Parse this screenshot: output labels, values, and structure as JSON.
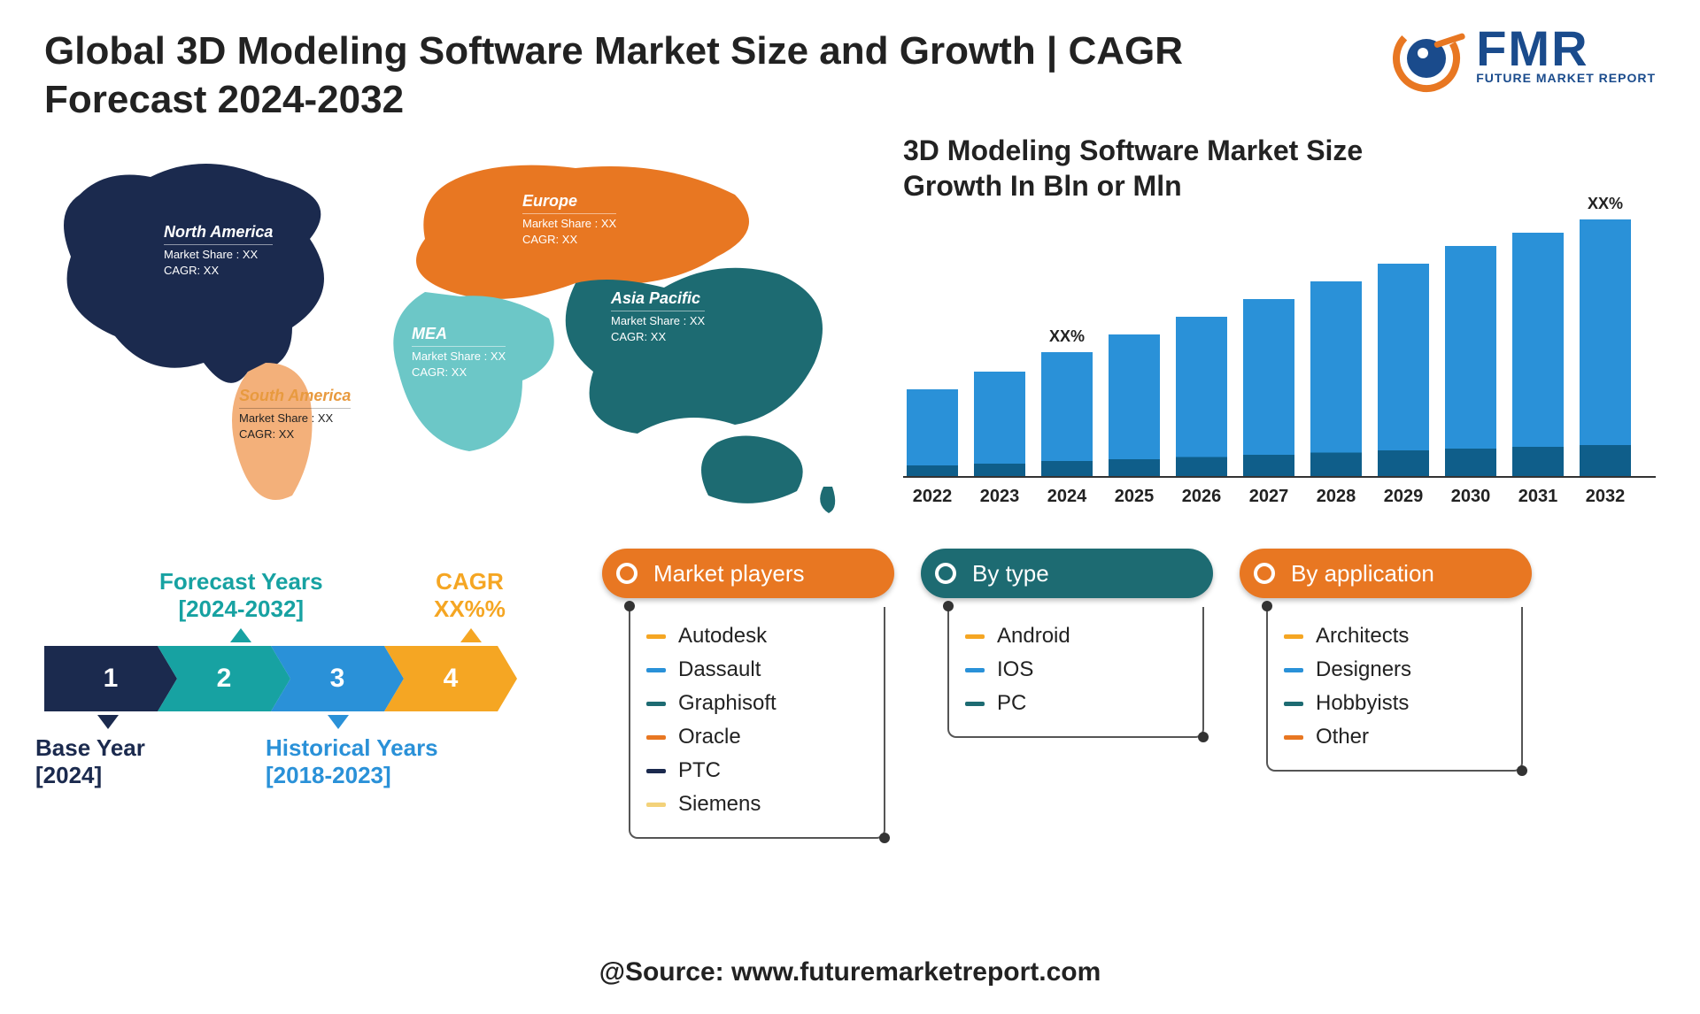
{
  "title": "Global 3D Modeling Software  Market Size and Growth | CAGR Forecast 2024-2032",
  "logo": {
    "fmr": "FMR",
    "sub": "FUTURE MARKET REPORT"
  },
  "colors": {
    "navy": "#1b2a4e",
    "teal": "#17a2a2",
    "blue": "#2a91d8",
    "orange": "#e87722",
    "yellow": "#f5a623",
    "lightTeal": "#6cc7c7",
    "peach": "#f3b07a",
    "deepTeal": "#1d6b72",
    "barBlue": "#2a91d8",
    "barDark": "#0f5e8a"
  },
  "map": {
    "regions": {
      "north_america": {
        "name": "North America",
        "share": "Market Share : XX",
        "cagr": "CAGR: XX",
        "color": "#1b2a4e"
      },
      "south_america": {
        "name": "South America",
        "share": "Market Share : XX",
        "cagr": "CAGR: XX",
        "color": "#f3b07a"
      },
      "europe": {
        "name": "Europe",
        "share": "Market Share : XX",
        "cagr": "CAGR: XX",
        "color": "#e87722"
      },
      "mea": {
        "name": "MEA",
        "share": "Market Share : XX",
        "cagr": "CAGR: XX",
        "color": "#6cc7c7"
      },
      "asia_pacific": {
        "name": "Asia Pacific",
        "share": "Market Share : XX",
        "cagr": "CAGR: XX",
        "color": "#1d6b72"
      }
    }
  },
  "chart": {
    "title": "3D Modeling Software Market Size Growth In Bln or Mln",
    "type": "bar",
    "years": [
      "2022",
      "2023",
      "2024",
      "2025",
      "2026",
      "2027",
      "2028",
      "2029",
      "2030",
      "2031",
      "2032"
    ],
    "values": [
      98,
      118,
      140,
      160,
      180,
      200,
      220,
      240,
      260,
      275,
      290
    ],
    "max": 300,
    "label_2024": "XX%",
    "label_2032": "XX%",
    "bar_color": "#2a91d8",
    "bar_dark": "#0f5e8a"
  },
  "timeline": {
    "steps": [
      {
        "n": "1",
        "color": "#1b2a4e"
      },
      {
        "n": "2",
        "color": "#17a2a2"
      },
      {
        "n": "3",
        "color": "#2a91d8"
      },
      {
        "n": "4",
        "color": "#f5a623"
      }
    ],
    "labels": {
      "base": {
        "text1": "Base Year",
        "text2": "[2024]",
        "color": "#1b2a4e"
      },
      "forecast": {
        "text1": "Forecast Years",
        "text2": "[2024-2032]",
        "color": "#17a2a2"
      },
      "hist": {
        "text1": "Historical Years",
        "text2": "[2018-2023]",
        "color": "#2a91d8"
      },
      "cagr": {
        "text1": "CAGR",
        "text2": "XX%%",
        "color": "#f5a623"
      }
    }
  },
  "columns": {
    "players": {
      "title": "Market players",
      "pill_color": "#e87722",
      "items": [
        {
          "label": "Autodesk",
          "dash": "#f5a623"
        },
        {
          "label": "Dassault",
          "dash": "#2a91d8"
        },
        {
          "label": "Graphisoft",
          "dash": "#1d6b72"
        },
        {
          "label": "Oracle",
          "dash": "#e87722"
        },
        {
          "label": "PTC",
          "dash": "#1b2a4e"
        },
        {
          "label": "Siemens",
          "dash": "#f3d27a"
        }
      ]
    },
    "type": {
      "title": "By type",
      "pill_color": "#1d6b72",
      "items": [
        {
          "label": "Android",
          "dash": "#f5a623"
        },
        {
          "label": "IOS",
          "dash": "#2a91d8"
        },
        {
          "label": "PC",
          "dash": "#1d6b72"
        }
      ]
    },
    "application": {
      "title": "By application",
      "pill_color": "#e87722",
      "items": [
        {
          "label": "Architects",
          "dash": "#f5a623"
        },
        {
          "label": "Designers",
          "dash": "#2a91d8"
        },
        {
          "label": "Hobbyists",
          "dash": "#1d6b72"
        },
        {
          "label": "Other",
          "dash": "#e87722"
        }
      ]
    }
  },
  "source": "@Source: www.futuremarketreport.com"
}
